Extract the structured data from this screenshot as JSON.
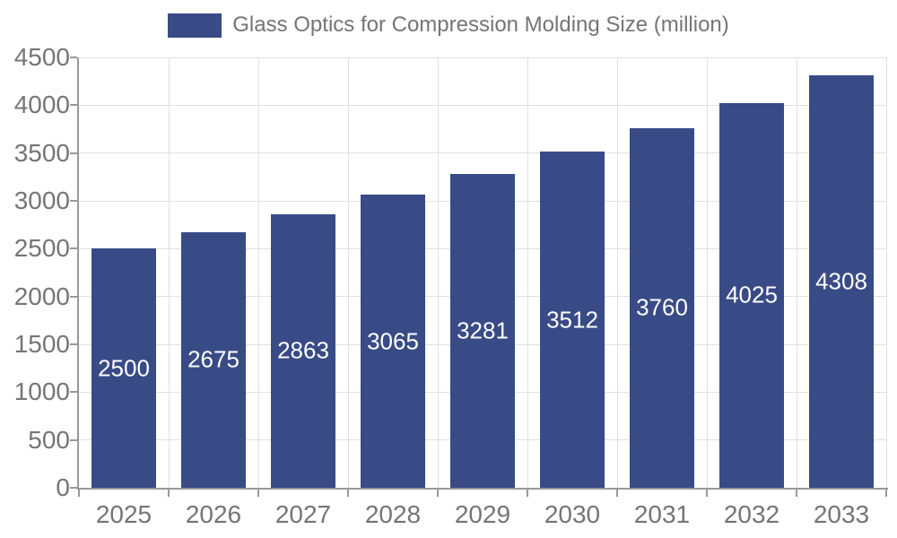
{
  "chart_data": {
    "type": "bar",
    "title": "",
    "categories": [
      "2025",
      "2026",
      "2027",
      "2028",
      "2029",
      "2030",
      "2031",
      "2032",
      "2033"
    ],
    "series": [
      {
        "name": "Glass Optics for Compression Molding Size (million)",
        "values": [
          2500,
          2675,
          2863,
          3065,
          3281,
          3512,
          3760,
          4025,
          4308
        ]
      }
    ],
    "data_labels": [
      "2500",
      "2675",
      "2863",
      "3065",
      "3281",
      "3512",
      "3760",
      "4025",
      "4308"
    ],
    "xlabel": "",
    "ylabel": "",
    "ylim": [
      0,
      4500
    ],
    "ytick_step": 500,
    "yticks": [
      0,
      500,
      1000,
      1500,
      2000,
      2500,
      3000,
      3500,
      4000,
      4500
    ],
    "grid": true,
    "legend_position": "top-center",
    "colors": {
      "bar": "#384b87",
      "grid": "#e0e0e0",
      "axis": "#999999",
      "tick_text": "#757575",
      "legend_text": "#757575",
      "data_label_text": "#ffffff",
      "background": "#ffffff"
    }
  }
}
